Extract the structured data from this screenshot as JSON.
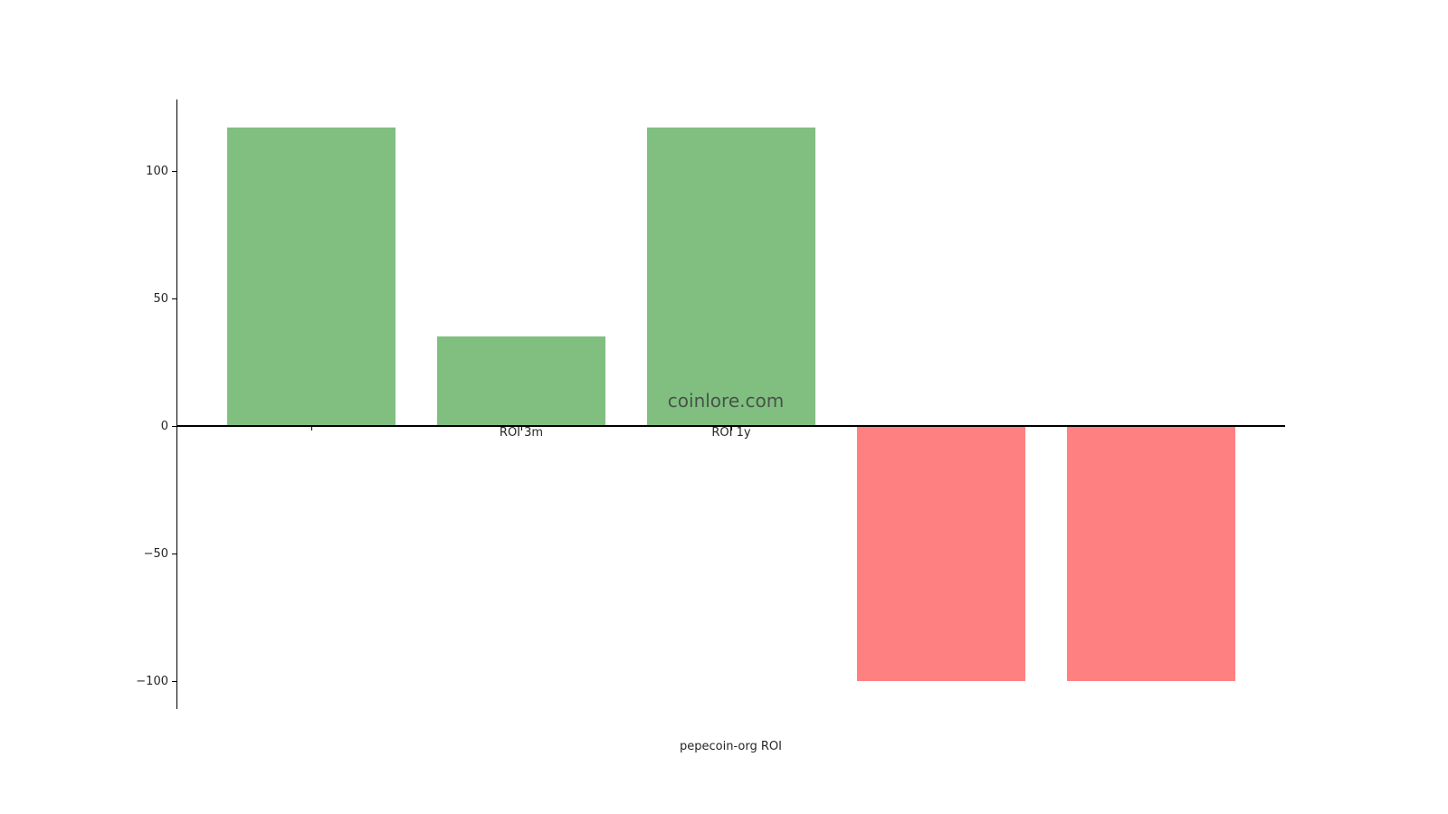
{
  "chart_data": {
    "type": "bar",
    "title": "",
    "xlabel": "pepecoin-org ROI",
    "ylabel": "",
    "categories": [
      "",
      "ROI 3m",
      "ROI 1y",
      "",
      ""
    ],
    "values": [
      117,
      35,
      117,
      -100,
      -100
    ],
    "positive_color": "#80BF80",
    "negative_color": "#FF8080",
    "yticks": [
      100,
      50,
      0,
      -50,
      -100
    ],
    "ytick_labels": [
      "100",
      "50",
      "0",
      "−50",
      "−100"
    ],
    "ylim": [
      -110.9,
      127.9
    ],
    "grid": false,
    "legend_position": "none",
    "axis_color": "#000000",
    "watermark": "coinlore.com",
    "notes": "x tick labels under the two negative bars and under the first bar are not visible in the rendered image; negative bars are drawn over the area below the zero line covering their tick labels"
  }
}
